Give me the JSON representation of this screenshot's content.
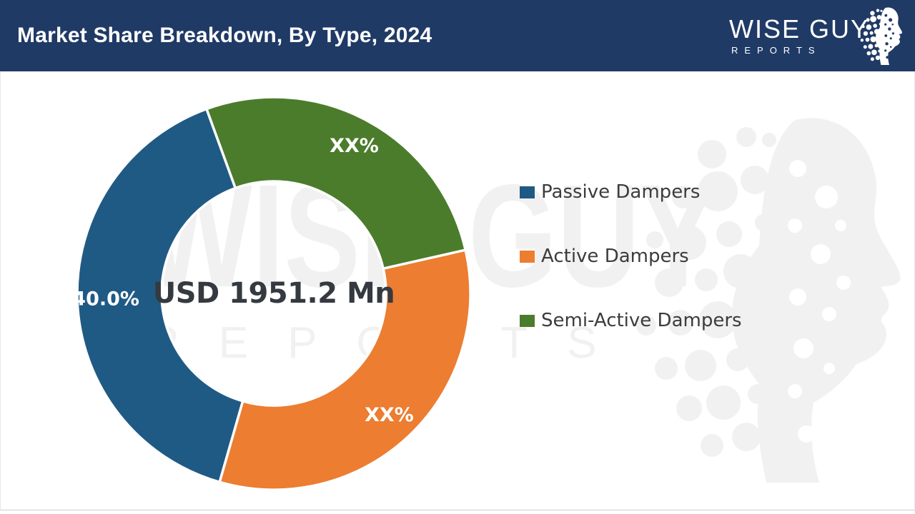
{
  "header": {
    "title": "Market Share Breakdown, By Type, 2024",
    "logo": {
      "name": "WISE GUY",
      "subtitle": "REPORTS"
    }
  },
  "watermark": {
    "name": "WISE GUY",
    "subtitle": "REPORTS"
  },
  "chart_data": {
    "type": "pie",
    "subtype": "donut",
    "title": "Market Share Breakdown, By Type, 2024",
    "center_label": "USD 1951.2 Mn",
    "start_angle_deg": 110,
    "direction": "counterclockwise",
    "legend_position": "right",
    "segments": [
      {
        "label": "Passive Dampers",
        "display_value": "40.0%",
        "share_pct": 40.0,
        "color": "#1F5A84"
      },
      {
        "label": "Active Dampers",
        "display_value": "XX%",
        "share_pct": 33.0,
        "color": "#EC7D31"
      },
      {
        "label": "Semi-Active Dampers",
        "display_value": "XX%",
        "share_pct": 27.0,
        "color": "#4B7C2B"
      }
    ]
  },
  "colors": {
    "header_bg": "#203A66",
    "watermark": "#F1F1F2",
    "center_text": "#343A40",
    "legend_text": "#3C3C3C",
    "segment_divider": "#FFFFFF",
    "bottom_border": "#CFCFCF"
  }
}
